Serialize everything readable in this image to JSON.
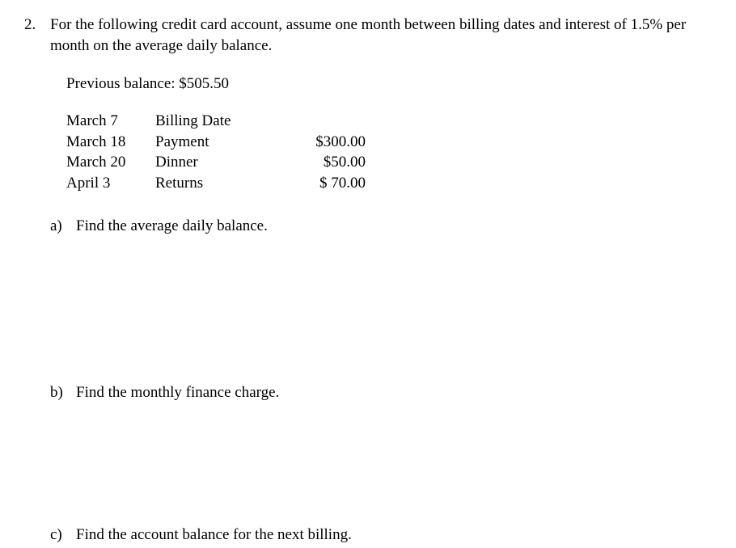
{
  "problem": {
    "number": "2.",
    "intro": "For the following credit card account, assume one month between billing dates and interest of 1.5% per month on the average daily balance.",
    "previous_balance_label": "Previous balance: $505.50",
    "transactions": [
      {
        "date": "March 7",
        "desc": "Billing Date",
        "amount": ""
      },
      {
        "date": "March 18",
        "desc": "Payment",
        "amount": "$300.00"
      },
      {
        "date": "March 20",
        "desc": "Dinner",
        "amount": "$50.00"
      },
      {
        "date": "April 3",
        "desc": "Returns",
        "amount": "$ 70.00"
      }
    ],
    "subparts": {
      "a": {
        "letter": "a)",
        "text": "Find the average daily balance."
      },
      "b": {
        "letter": "b)",
        "text": "Find the monthly finance charge."
      },
      "c": {
        "letter": "c)",
        "text": "Find the account balance for the next billing."
      }
    }
  }
}
